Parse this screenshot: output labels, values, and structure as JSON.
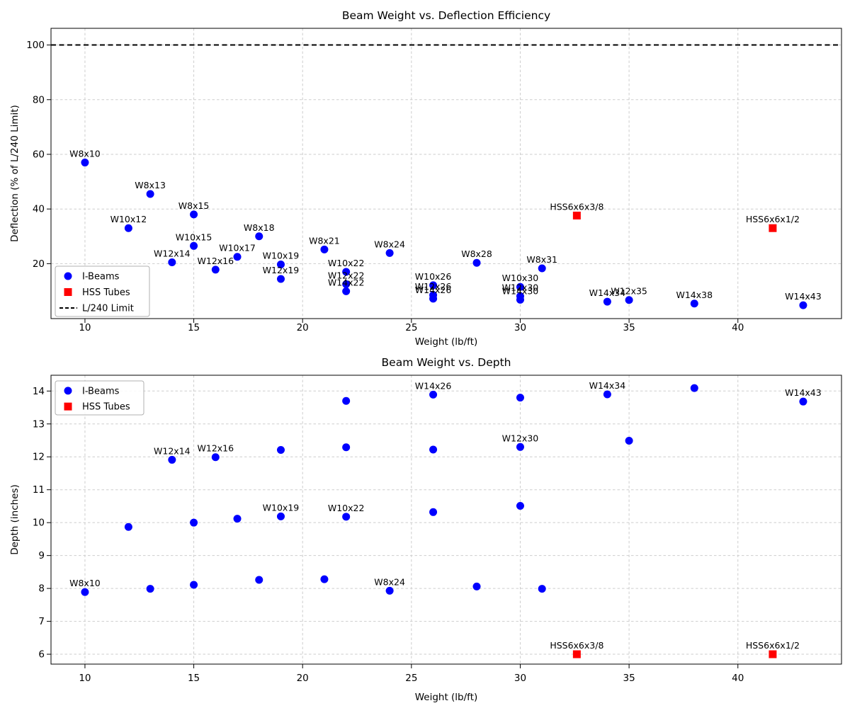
{
  "figure": {
    "background": "#ffffff"
  },
  "chart_data": [
    {
      "type": "scatter",
      "title": "Beam Weight vs. Deflection Efficiency",
      "xlabel": "Weight (lb/ft)",
      "ylabel": "Deflection (% of L/240 Limit)",
      "xlim": [
        8.44,
        44.76
      ],
      "ylim": [
        -0.1,
        106.1
      ],
      "xticks": [
        10,
        15,
        20,
        25,
        30,
        35,
        40
      ],
      "yticks": [
        20,
        40,
        60,
        80,
        100
      ],
      "grid": true,
      "legend": {
        "position": "lower-left",
        "entries": [
          {
            "label": "I-Beams",
            "marker": "circle",
            "color": "#0000ff"
          },
          {
            "label": "HSS Tubes",
            "marker": "square",
            "color": "#ff0000"
          },
          {
            "label": "L/240 Limit",
            "marker": "dashed-line",
            "color": "#000000"
          }
        ]
      },
      "limit_line": {
        "y": 100,
        "color": "#000000",
        "style": "dashed"
      },
      "series": [
        {
          "name": "I-Beams",
          "marker": "circle",
          "color": "#0000ff",
          "points": [
            {
              "label": "W8x10",
              "x": 10,
              "y": 57,
              "annotated": true
            },
            {
              "label": "W10x12",
              "x": 12,
              "y": 33,
              "annotated": true
            },
            {
              "label": "W8x13",
              "x": 13,
              "y": 45.5,
              "annotated": true
            },
            {
              "label": "W12x14",
              "x": 14,
              "y": 20.5,
              "annotated": true
            },
            {
              "label": "W8x15",
              "x": 15,
              "y": 38,
              "annotated": true
            },
            {
              "label": "W10x15",
              "x": 15,
              "y": 26.5,
              "annotated": true
            },
            {
              "label": "W12x16",
              "x": 16,
              "y": 17.8,
              "annotated": true
            },
            {
              "label": "W10x17",
              "x": 17,
              "y": 22.5,
              "annotated": true
            },
            {
              "label": "W8x18",
              "x": 18,
              "y": 30,
              "annotated": true
            },
            {
              "label": "W10x19",
              "x": 19,
              "y": 19.7,
              "annotated": true
            },
            {
              "label": "W12x19",
              "x": 19,
              "y": 14.4,
              "annotated": true
            },
            {
              "label": "W8x21",
              "x": 21,
              "y": 25.2,
              "annotated": true
            },
            {
              "label": "W10x22",
              "x": 22,
              "y": 17,
              "annotated": true
            },
            {
              "label": "W12x22",
              "x": 22,
              "y": 12.5,
              "annotated": true
            },
            {
              "label": "W14x22",
              "x": 22,
              "y": 9.9,
              "annotated": true
            },
            {
              "label": "W8x24",
              "x": 24,
              "y": 23.9,
              "annotated": true
            },
            {
              "label": "W10x26",
              "x": 26,
              "y": 12.1,
              "annotated": true
            },
            {
              "label": "W12x26",
              "x": 26,
              "y": 8.5,
              "annotated": true
            },
            {
              "label": "W14x26",
              "x": 26,
              "y": 7.2,
              "annotated": true
            },
            {
              "label": "W8x28",
              "x": 28,
              "y": 20.3,
              "annotated": true
            },
            {
              "label": "W10x30",
              "x": 30,
              "y": 11.5,
              "annotated": true
            },
            {
              "label": "W12x30",
              "x": 30,
              "y": 8.1,
              "annotated": true
            },
            {
              "label": "W14x30",
              "x": 30,
              "y": 6.8,
              "annotated": true
            },
            {
              "label": "W8x31",
              "x": 31,
              "y": 18.3,
              "annotated": true
            },
            {
              "label": "W14x34",
              "x": 34,
              "y": 6.1,
              "annotated": true
            },
            {
              "label": "W12x35",
              "x": 35,
              "y": 6.7,
              "annotated": true
            },
            {
              "label": "W14x38",
              "x": 38,
              "y": 5.4,
              "annotated": true
            },
            {
              "label": "W14x43",
              "x": 43,
              "y": 4.8,
              "annotated": true
            }
          ]
        },
        {
          "name": "HSS Tubes",
          "marker": "square",
          "color": "#ff0000",
          "points": [
            {
              "label": "HSS6x6x3/8",
              "x": 32.6,
              "y": 37.6,
              "annotated": true
            },
            {
              "label": "HSS6x6x1/2",
              "x": 41.6,
              "y": 33,
              "annotated": true
            }
          ]
        }
      ]
    },
    {
      "type": "scatter",
      "title": "Beam Weight vs. Depth",
      "xlabel": "Weight (lb/ft)",
      "ylabel": "Depth (inches)",
      "xlim": [
        8.44,
        44.76
      ],
      "ylim": [
        5.7,
        14.48
      ],
      "xticks": [
        10,
        15,
        20,
        25,
        30,
        35,
        40
      ],
      "yticks": [
        6,
        7,
        8,
        9,
        10,
        11,
        12,
        13,
        14
      ],
      "grid": true,
      "legend": {
        "position": "upper-left",
        "entries": [
          {
            "label": "I-Beams",
            "marker": "circle",
            "color": "#0000ff"
          },
          {
            "label": "HSS Tubes",
            "marker": "square",
            "color": "#ff0000"
          }
        ]
      },
      "series": [
        {
          "name": "I-Beams",
          "marker": "circle",
          "color": "#0000ff",
          "points": [
            {
              "label": "W8x10",
              "x": 10,
              "y": 7.89,
              "annotated": true
            },
            {
              "label": "W10x12",
              "x": 12,
              "y": 9.87,
              "annotated": false
            },
            {
              "label": "W8x13",
              "x": 13,
              "y": 7.99,
              "annotated": false
            },
            {
              "label": "W12x14",
              "x": 14,
              "y": 11.91,
              "annotated": true
            },
            {
              "label": "W8x15",
              "x": 15,
              "y": 8.11,
              "annotated": false
            },
            {
              "label": "W10x15",
              "x": 15,
              "y": 10.0,
              "annotated": false
            },
            {
              "label": "W12x16",
              "x": 16,
              "y": 11.99,
              "annotated": true
            },
            {
              "label": "W10x17",
              "x": 17,
              "y": 10.12,
              "annotated": false
            },
            {
              "label": "W8x18",
              "x": 18,
              "y": 8.26,
              "annotated": false
            },
            {
              "label": "W10x19",
              "x": 19,
              "y": 10.19,
              "annotated": true
            },
            {
              "label": "W12x19",
              "x": 19,
              "y": 12.21,
              "annotated": false
            },
            {
              "label": "W8x21",
              "x": 21,
              "y": 8.28,
              "annotated": false
            },
            {
              "label": "W10x22",
              "x": 22,
              "y": 10.18,
              "annotated": true
            },
            {
              "label": "W12x22",
              "x": 22,
              "y": 12.29,
              "annotated": false
            },
            {
              "label": "W14x22",
              "x": 22,
              "y": 13.7,
              "annotated": false
            },
            {
              "label": "W8x24",
              "x": 24,
              "y": 7.93,
              "annotated": true
            },
            {
              "label": "W10x26",
              "x": 26,
              "y": 10.32,
              "annotated": false
            },
            {
              "label": "W12x26",
              "x": 26,
              "y": 12.22,
              "annotated": false
            },
            {
              "label": "W14x26",
              "x": 26,
              "y": 13.89,
              "annotated": true
            },
            {
              "label": "W8x28",
              "x": 28,
              "y": 8.06,
              "annotated": false
            },
            {
              "label": "W10x30",
              "x": 30,
              "y": 10.51,
              "annotated": false
            },
            {
              "label": "W12x30",
              "x": 30,
              "y": 12.3,
              "annotated": true
            },
            {
              "label": "W14x30",
              "x": 30,
              "y": 13.8,
              "annotated": false
            },
            {
              "label": "W8x31",
              "x": 31,
              "y": 7.99,
              "annotated": false
            },
            {
              "label": "W14x34",
              "x": 34,
              "y": 13.9,
              "annotated": true
            },
            {
              "label": "W12x35",
              "x": 35,
              "y": 12.49,
              "annotated": false
            },
            {
              "label": "W14x38",
              "x": 38,
              "y": 14.09,
              "annotated": false
            },
            {
              "label": "W14x43",
              "x": 43,
              "y": 13.68,
              "annotated": true
            }
          ]
        },
        {
          "name": "HSS Tubes",
          "marker": "square",
          "color": "#ff0000",
          "points": [
            {
              "label": "HSS6x6x3/8",
              "x": 32.6,
              "y": 6.0,
              "annotated": true
            },
            {
              "label": "HSS6x6x1/2",
              "x": 41.6,
              "y": 6.0,
              "annotated": true
            }
          ]
        }
      ]
    }
  ]
}
